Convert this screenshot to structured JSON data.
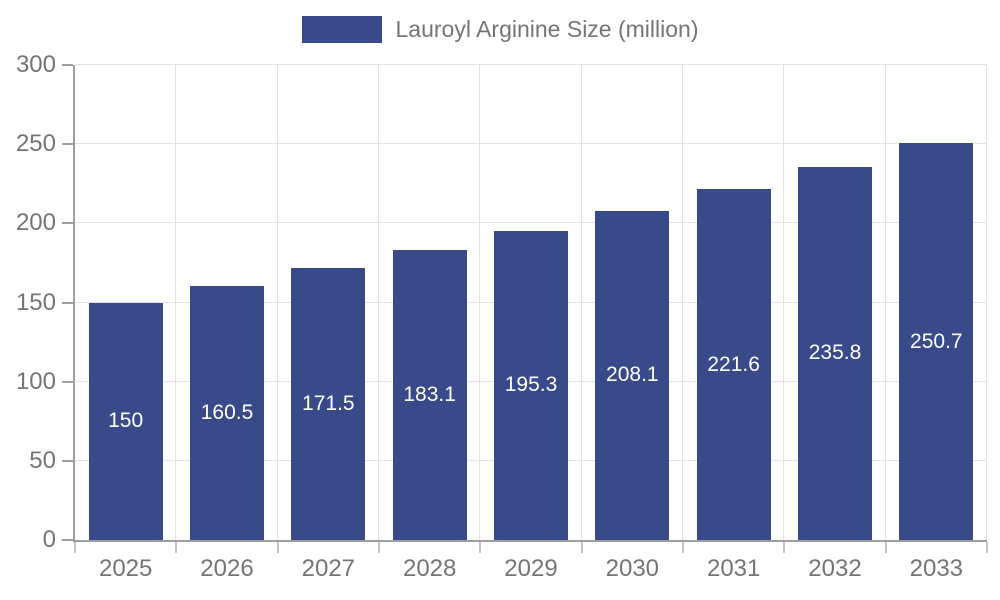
{
  "legend": {
    "label": "Lauroyl Arginine Size (million)"
  },
  "colors": {
    "bar": "#394A8A",
    "grid": "#e3e3e3",
    "axis": "#9e9e9e",
    "tick_text": "#757575",
    "bar_label_text": "#ffffff"
  },
  "chart_data": {
    "type": "bar",
    "title": "Lauroyl Arginine Size (million)",
    "categories": [
      "2025",
      "2026",
      "2027",
      "2028",
      "2029",
      "2030",
      "2031",
      "2032",
      "2033"
    ],
    "values": [
      150,
      160.5,
      171.5,
      183.1,
      195.3,
      208.1,
      221.6,
      235.8,
      250.7
    ],
    "value_labels": [
      "150",
      "160.5",
      "171.5",
      "183.1",
      "195.3",
      "208.1",
      "221.6",
      "235.8",
      "250.7"
    ],
    "xlabel": "",
    "ylabel": "",
    "ylim": [
      0,
      300
    ],
    "yticks": [
      0,
      50,
      100,
      150,
      200,
      250,
      300
    ],
    "grid": true,
    "legend_position": "top",
    "bar_labels_inside": true
  }
}
